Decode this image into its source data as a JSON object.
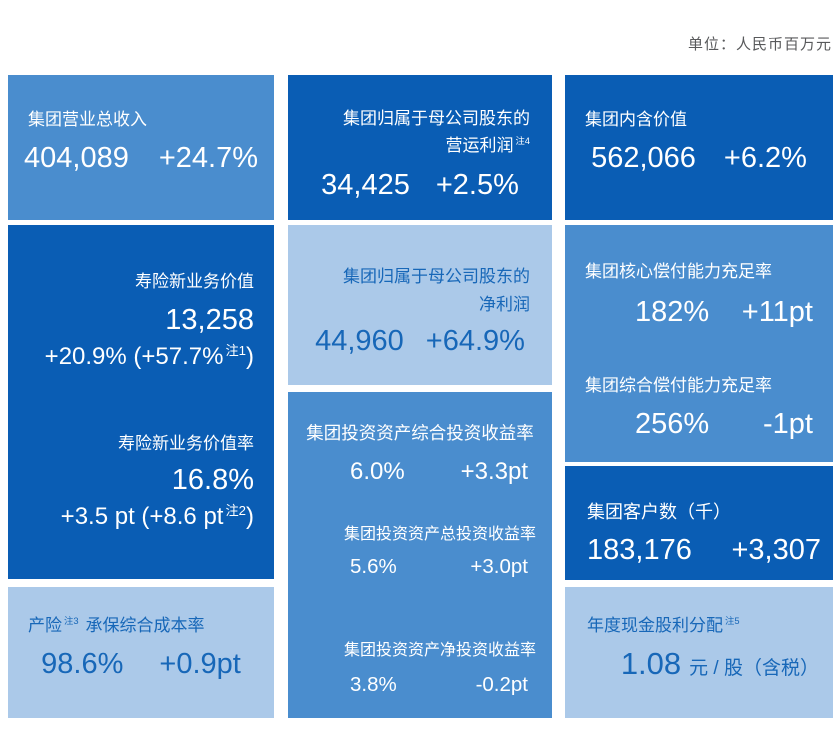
{
  "header": {
    "unit_label": "单位：人民币百万元"
  },
  "colors": {
    "tile_medium_blue": "#4A8DCE",
    "tile_dark_blue": "#0A5DB4",
    "tile_light_blue": "#ABC9E9",
    "text_on_light": "#1767B8",
    "text_on_dark": "#FFFFFF",
    "unit_note_gray": "#58595B",
    "background": "#FFFFFF"
  },
  "tiles": {
    "group_revenue": {
      "label": "集团营业总收入",
      "value": "404,089",
      "change": "+24.7%"
    },
    "operating_profit": {
      "label_line1": "集团归属于母公司股东的",
      "label_line2": "营运利润",
      "note": "注4",
      "value": "34,425",
      "change": "+2.5%"
    },
    "embedded_value": {
      "label": "集团内含价值",
      "value": "562,066",
      "change": "+6.2%"
    },
    "life_nbv": {
      "label": "寿险新业务价值",
      "value": "13,258",
      "change_main": "+20.9% (+57.7%",
      "change_note": "注1",
      "change_close": ")"
    },
    "life_nbv_margin": {
      "label": "寿险新业务价值率",
      "value": "16.8%",
      "change_main": "+3.5 pt (+8.6 pt",
      "change_note": "注2",
      "change_close": ")"
    },
    "pc_combined_ratio": {
      "label_prefix": "产险",
      "note": "注3",
      "label_suffix": "承保综合成本率",
      "value": "98.6%",
      "change": "+0.9pt"
    },
    "net_profit": {
      "label_line1": "集团归属于母公司股东的",
      "label_line2": "净利润",
      "value": "44,960",
      "change": "+64.9%"
    },
    "investment_yields": {
      "comprehensive": {
        "label": "集团投资资产综合投资收益率",
        "value": "6.0%",
        "change": "+3.3pt"
      },
      "total": {
        "label": "集团投资资产总投资收益率",
        "value": "5.6%",
        "change": "+3.0pt"
      },
      "net": {
        "label": "集团投资资产净投资收益率",
        "value": "3.8%",
        "change": "-0.2pt"
      }
    },
    "core_solvency": {
      "label": "集团核心偿付能力充足率",
      "value": "182%",
      "change": "+11pt"
    },
    "comprehensive_solvency": {
      "label": "集团综合偿付能力充足率",
      "value": "256%",
      "change": "-1pt"
    },
    "group_customers": {
      "label": "集团客户数（千）",
      "value": "183,176",
      "change": "+3,307"
    },
    "annual_dividend": {
      "label": "年度现金股利分配",
      "note": "注5",
      "value": "1.08",
      "unit": "元 / 股（含税）"
    }
  }
}
